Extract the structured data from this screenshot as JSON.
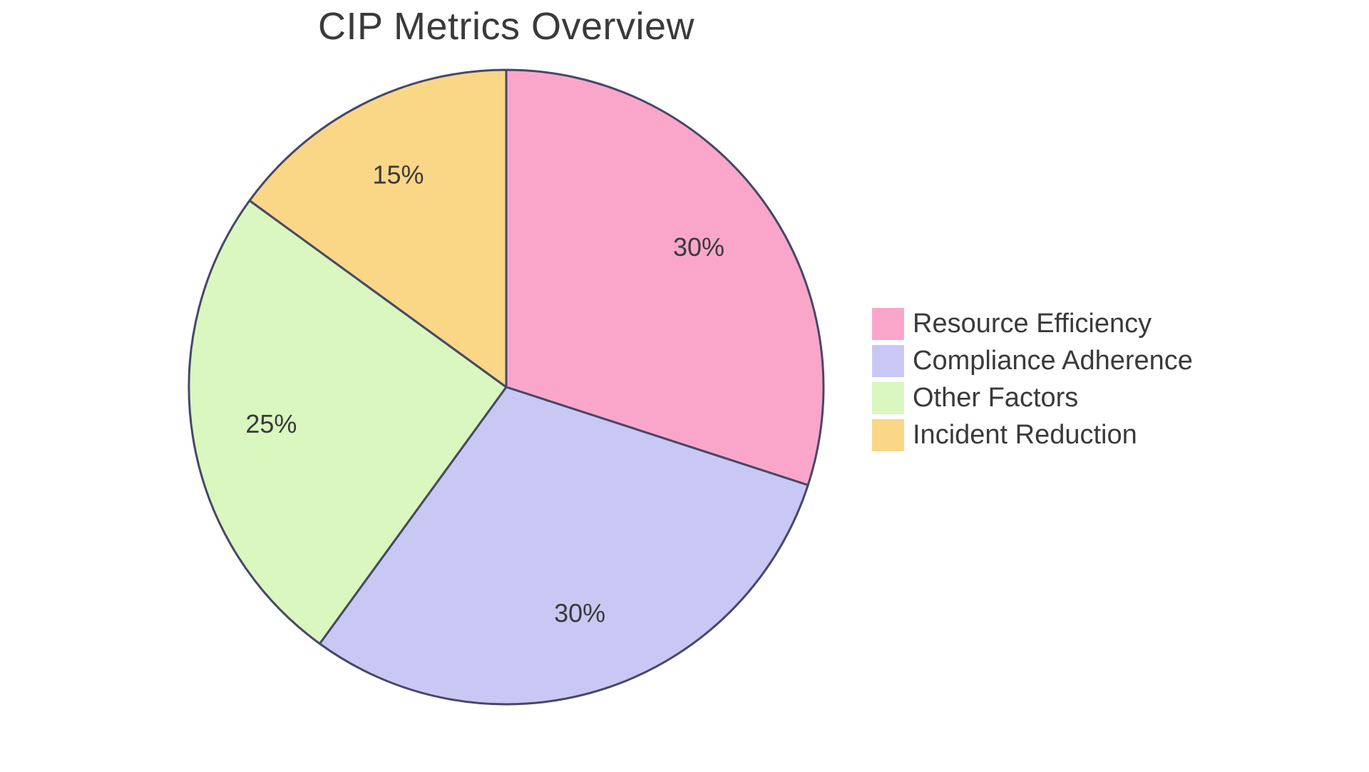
{
  "chart_data": {
    "type": "pie",
    "title": "CIP Metrics Overview",
    "labels": [
      "Resource Efficiency",
      "Compliance Adherence",
      "Other Factors",
      "Incident Reduction"
    ],
    "values": [
      30,
      30,
      25,
      15
    ],
    "slice_labels": [
      "30%",
      "30%",
      "25%",
      "15%"
    ],
    "colors": [
      "#FAA6CB",
      "#C9C8F4",
      "#D9F7BE",
      "#FAD687"
    ],
    "edge_color": "#464866",
    "label_color": "#3A3A3A",
    "title_color": "#3A3A3A",
    "start_angle": 90,
    "direction": "clockwise",
    "pct_distance": 0.75,
    "legend_position": "right-middle",
    "grid": false,
    "background": "#FFFFFF"
  }
}
